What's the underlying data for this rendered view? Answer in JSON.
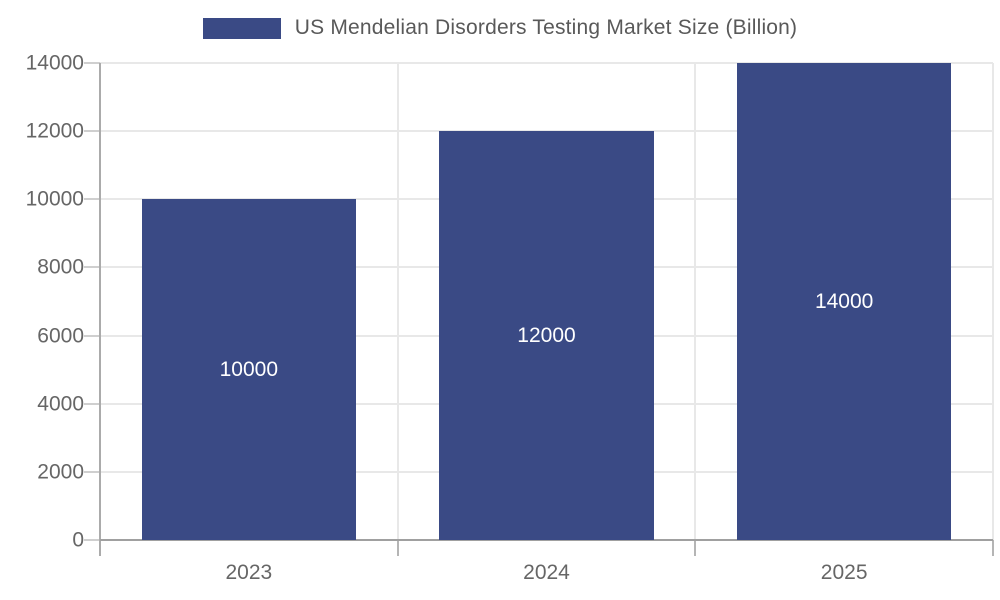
{
  "legend": {
    "label": "US Mendelian Disorders Testing Market Size (Billion)"
  },
  "colors": {
    "bar": "#3a4a85",
    "grid": "#e8e8e8",
    "axis": "#a0a0a0",
    "tick_label": "#666666",
    "bar_label": "#ffffff",
    "legend_text": "#595959"
  },
  "chart_data": {
    "type": "bar",
    "title": "US Mendelian Disorders Testing Market Size (Billion)",
    "categories": [
      "2023",
      "2024",
      "2025"
    ],
    "values": [
      10000,
      12000,
      14000
    ],
    "bar_labels": [
      "10000",
      "12000",
      "14000"
    ],
    "xlabel": "",
    "ylabel": "",
    "ylim": [
      0,
      14000
    ],
    "yticks": [
      0,
      2000,
      4000,
      6000,
      8000,
      10000,
      12000,
      14000
    ],
    "grid": true,
    "legend_position": "top",
    "bar_label_position": "inside-center"
  }
}
